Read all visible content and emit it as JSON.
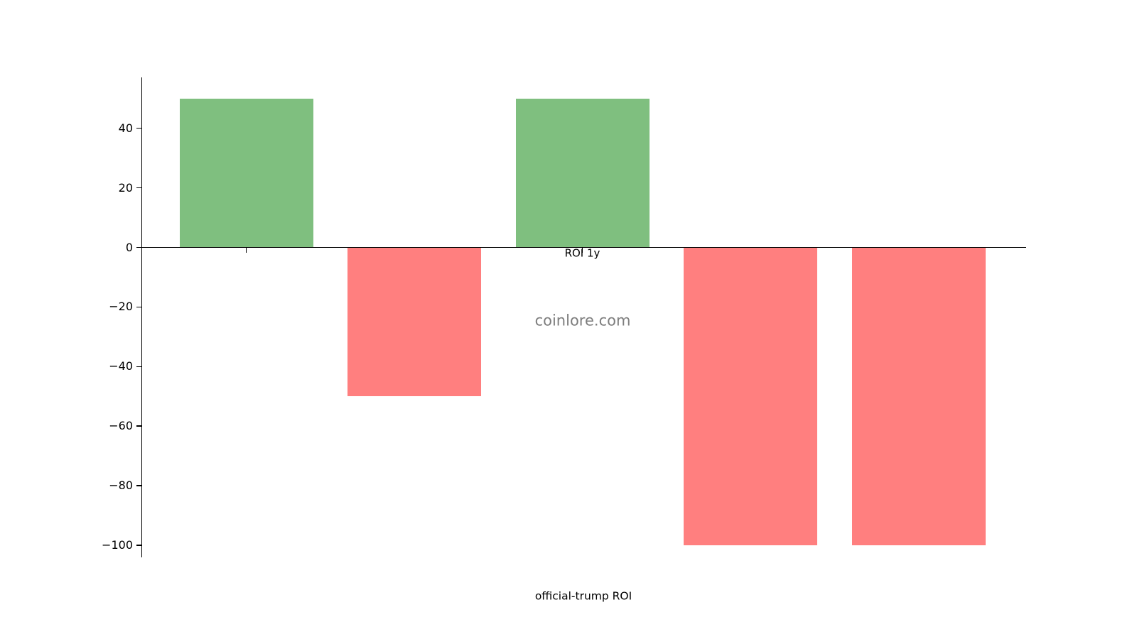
{
  "page": {
    "background": "#ffffff"
  },
  "chart_data": {
    "type": "bar",
    "xlabel": "official-trump ROI",
    "ylabel": "",
    "categories": [
      "",
      "",
      "ROI 1y",
      "",
      ""
    ],
    "values": [
      50,
      -50,
      50,
      -100,
      -100
    ],
    "yticks": [
      40,
      20,
      0,
      -20,
      -40,
      -60,
      -80,
      -100
    ],
    "ylim": [
      -104,
      57
    ],
    "grid": false,
    "legend": false,
    "positive_color": "#7fbf7f",
    "negative_color": "#ff7f7f",
    "axis_color": "#000000",
    "text_color": "#000000",
    "watermark": "coinlore.com",
    "watermark_color": "#7d7d7d",
    "visible_xtick_label": "ROI 1y"
  }
}
